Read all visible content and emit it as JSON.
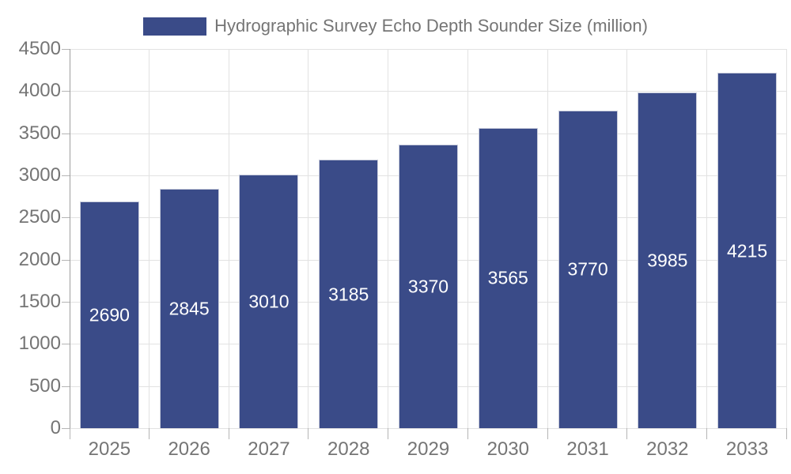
{
  "chart_data": {
    "type": "bar",
    "title": "Hydrographic Survey Echo Depth Sounder Size (million)",
    "series_name": "Hydrographic Survey Echo Depth Sounder Size (million)",
    "categories": [
      "2025",
      "2026",
      "2027",
      "2028",
      "2029",
      "2030",
      "2031",
      "2032",
      "2033"
    ],
    "values": [
      2690,
      2845,
      3010,
      3185,
      3370,
      3565,
      3770,
      3985,
      4215
    ],
    "xlabel": "",
    "ylabel": "",
    "ylim": [
      0,
      4500
    ],
    "ytick_step": 500,
    "yticks": [
      0,
      500,
      1000,
      1500,
      2000,
      2500,
      3000,
      3500,
      4000,
      4500
    ],
    "grid": true,
    "legend_position": "top",
    "bar_value_labels": true
  },
  "colors": {
    "bar_fill": "#3A4B88",
    "bar_border": "#C9CDDC",
    "bar_label_text": "#FFFFFF",
    "axis_text": "#757575",
    "legend_text": "#757575",
    "gridline": "#E2E2E2",
    "axis_line": "#9E9E9E",
    "tick_mark": "#B5B5B5",
    "background": "#FFFFFF"
  }
}
